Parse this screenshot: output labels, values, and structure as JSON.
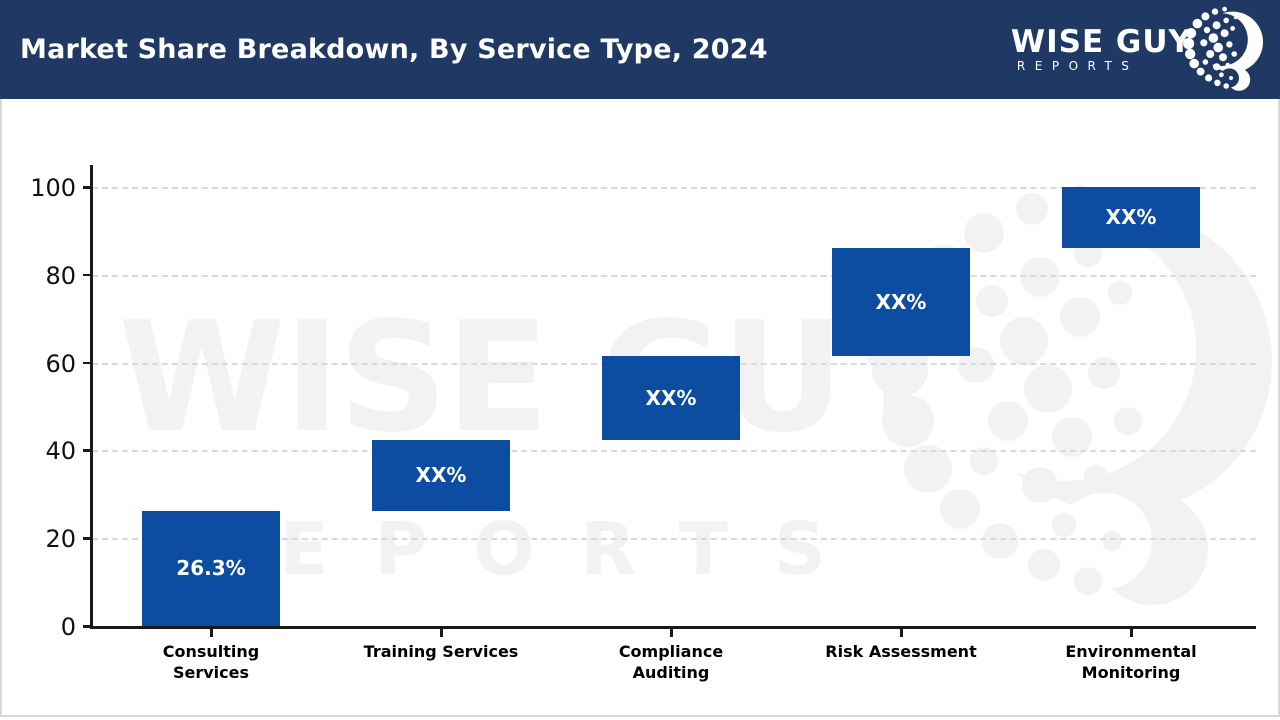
{
  "brand": {
    "name": "WISE GUY",
    "tagline": "REPORTS"
  },
  "watermark": {
    "name": "WISE GUY",
    "tagline": "REPORTS"
  },
  "chart_data": {
    "type": "waterfall_bar",
    "title": "Market Share Breakdown, By Service Type, 2024",
    "categories": [
      "Consulting Services",
      "Training Services",
      "Compliance Auditing",
      "Risk Assessment",
      "Environmental Monitoring"
    ],
    "category_label_lines": [
      [
        "Consulting",
        "Services"
      ],
      [
        "Training Services"
      ],
      [
        "Compliance",
        "Auditing"
      ],
      [
        "Risk Assessment"
      ],
      [
        "Environmental",
        "Monitoring"
      ]
    ],
    "segments": [
      {
        "category": "Consulting Services",
        "start": 0,
        "end": 26.3,
        "label": "26.3%"
      },
      {
        "category": "Training Services",
        "start": 26.3,
        "end": 42.3,
        "label": "XX%"
      },
      {
        "category": "Compliance Auditing",
        "start": 42.3,
        "end": 61.4,
        "label": "XX%"
      },
      {
        "category": "Risk Assessment",
        "start": 61.4,
        "end": 86.2,
        "label": "XX%"
      },
      {
        "category": "Environmental Monitoring",
        "start": 86.2,
        "end": 100,
        "label": "XX%"
      }
    ],
    "y_axis": {
      "ticks": [
        0,
        20,
        40,
        60,
        80,
        100
      ],
      "min": 0,
      "max": 105
    },
    "x_axis_label": "",
    "y_axis_label": "",
    "legend": "none",
    "grid": "horizontal-dashed",
    "colors": {
      "bar": "#0c4da2",
      "bar_label": "#ffffff",
      "grid": "#d9d9d9",
      "axis": "#1a1a1a",
      "header_bg": "#203864",
      "title_text": "#ffffff",
      "watermark": "#f2f2f2"
    }
  }
}
